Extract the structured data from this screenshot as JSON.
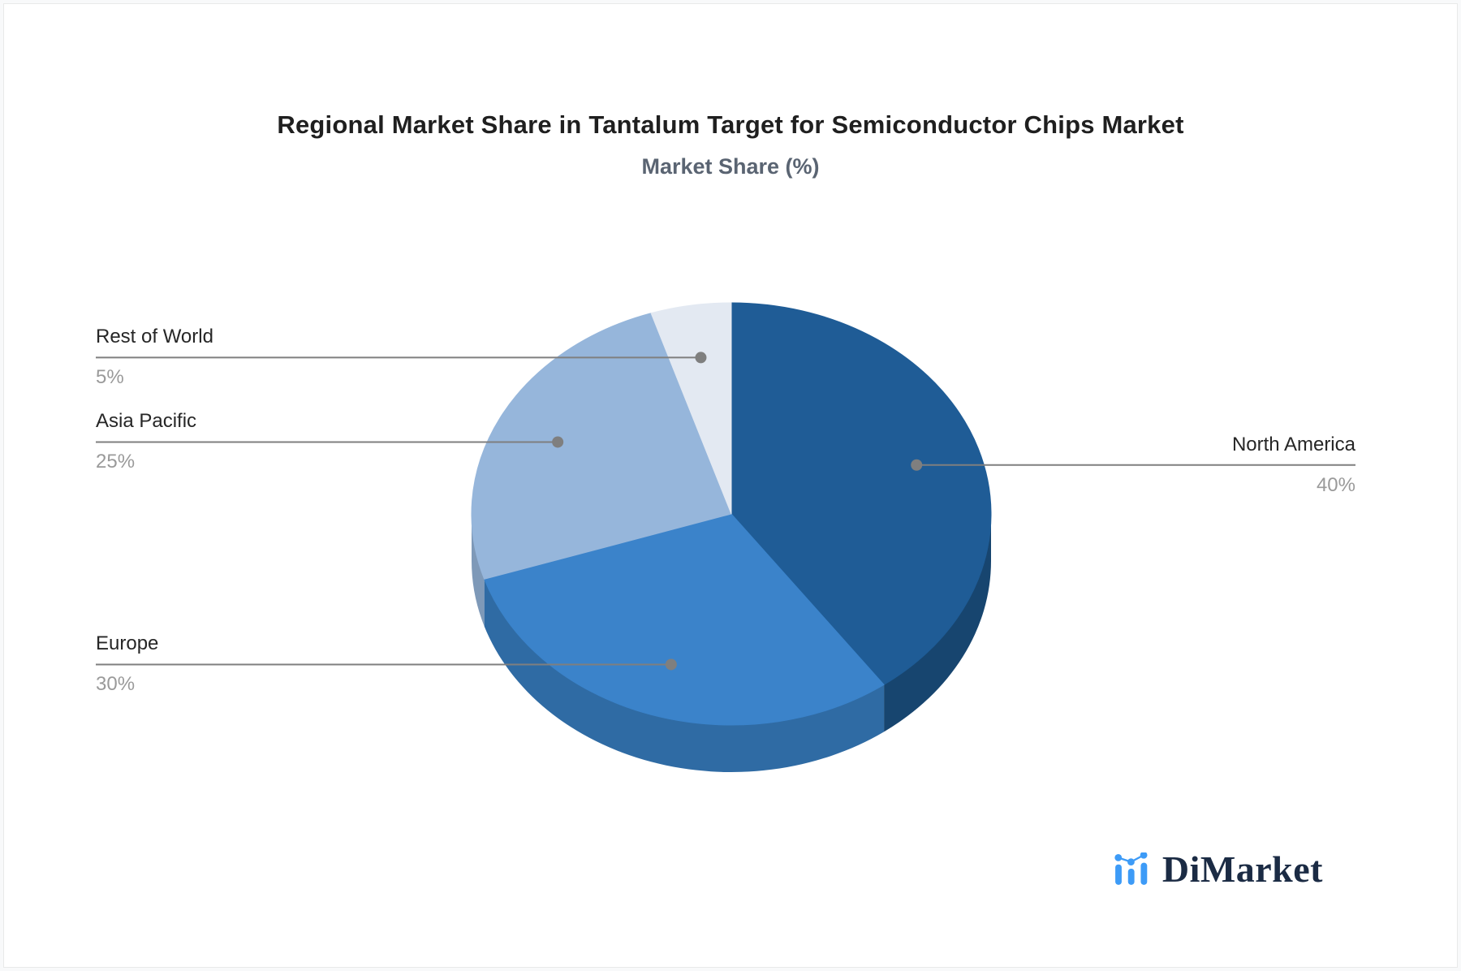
{
  "page": {
    "background_color": "#f8f9fa",
    "card_background_color": "#ffffff",
    "card_border_color": "#e9e9e9"
  },
  "chart_data": {
    "type": "pie",
    "style": "3d",
    "title": "Regional Market Share in Tantalum Target for Semiconductor Chips Market",
    "subtitle": "Market Share (%)",
    "unit": "%",
    "legend_position": "none",
    "start_angle_clockwise_from_top": 0,
    "categories": [
      "North America",
      "Europe",
      "Asia Pacific",
      "Rest of World"
    ],
    "values": [
      40,
      30,
      25,
      5
    ],
    "slices": [
      {
        "label": "North America",
        "value": 40,
        "display_value": "40%",
        "color": "#1F5C96",
        "side_color": "#17456F"
      },
      {
        "label": "Europe",
        "value": 30,
        "display_value": "30%",
        "color": "#3B83CA",
        "side_color": "#2F6BA4"
      },
      {
        "label": "Asia Pacific",
        "value": 25,
        "display_value": "25%",
        "color": "#96B6DB",
        "side_color": "#7E99B8"
      },
      {
        "label": "Rest of World",
        "value": 5,
        "display_value": "5%",
        "color": "#E3E9F2",
        "side_color": "#C7D1DF"
      }
    ],
    "label_style": {
      "name_color": "#262626",
      "value_color": "#9a9a9a",
      "leader_line_color": "#7f7f7f",
      "title_color": "#1f1f1f",
      "subtitle_color": "#5a6472"
    }
  },
  "brand": {
    "name": "DiMarket",
    "icon": "bar-chart-logo-icon",
    "icon_color": "#3D9BF7",
    "text_color": "#1b2b44"
  }
}
